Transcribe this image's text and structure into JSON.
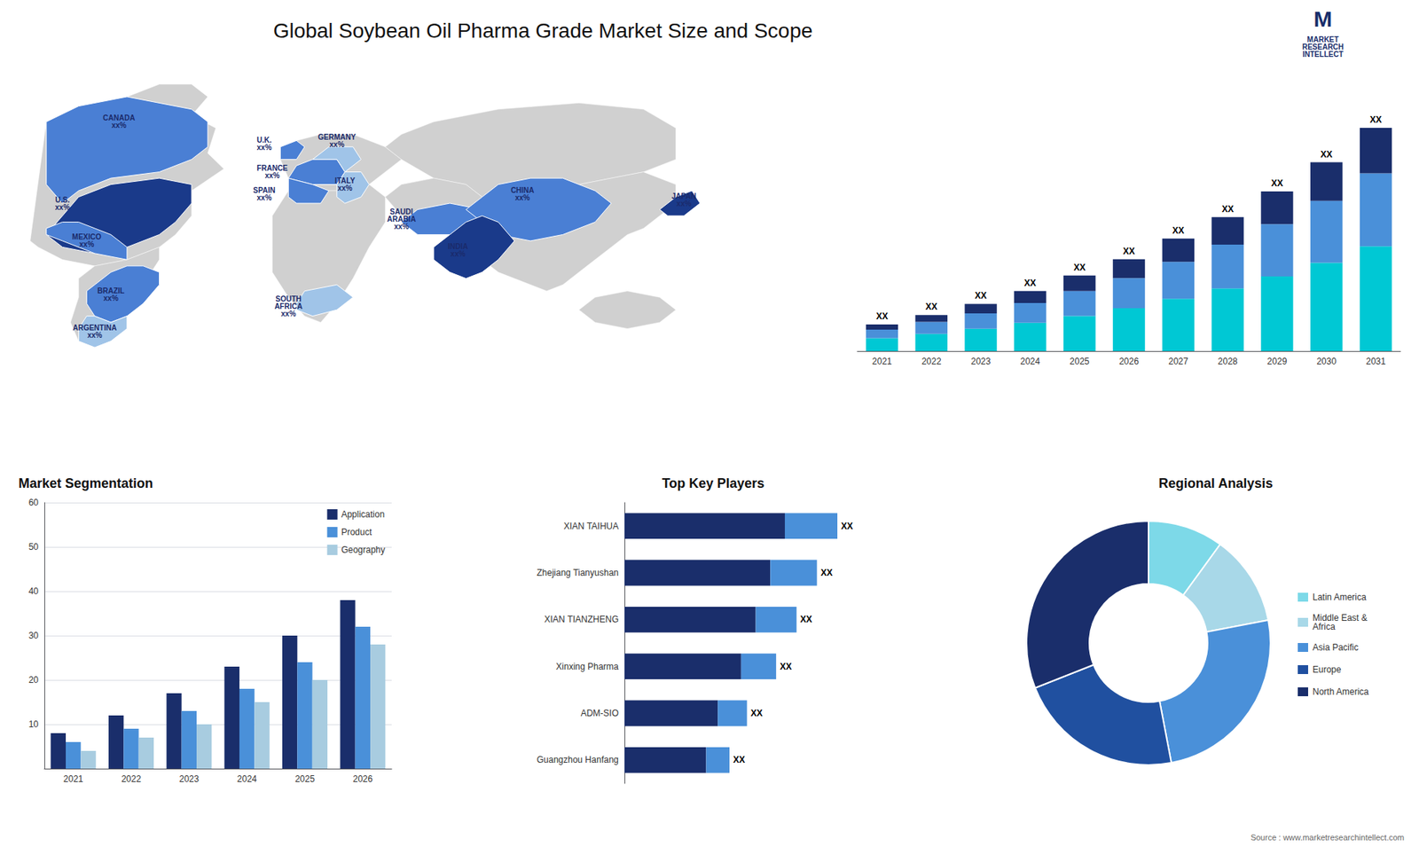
{
  "title": "Global Soybean Oil Pharma Grade Market Size and Scope",
  "annotations": [
    "M",
    "MARKET\nRESEARCH\nINTELLECT",
    "Source : www.marketresearchintellect.com"
  ],
  "chart_data": [
    {
      "type": "map",
      "color": "#d0d0d0",
      "annotations": [
        "CANADA\nxx%",
        "U.S.\nxx%",
        "MEXICO\nxx%",
        "BRAZIL\nxx%",
        "ARGENTINA\nxx%",
        "U.K.\nxx%",
        "FRANCE\nxx%",
        "SPAIN\nxx%",
        "GERMANY\nxx%",
        "ITALY\nxx%",
        "SAUDI\nARABIA\nxx%",
        "SOUTH\nAFRICA\nxx%",
        "CHINA\nxx%",
        "INDIA\nxx%",
        "JAPAN\nxx%"
      ],
      "colors": [
        "#4a7fd4",
        "#1a3a8a",
        "#4a7fd4",
        "#4a7fd4",
        "#a0c4e8",
        "#4a7fd4",
        "#4a7fd4",
        "#4a7fd4",
        "#a0c4e8",
        "#a0c4e8",
        "#4a7fd4",
        "#a0c4e8",
        "#4a7fd4",
        "#1a3a8a",
        "#1a3a8a"
      ]
    },
    {
      "type": "bar",
      "stacked": true,
      "categories": [
        "2021",
        "2022",
        "2023",
        "2024",
        "2025",
        "2026",
        "2027",
        "2028",
        "2029",
        "2030",
        "2031"
      ],
      "series": [
        {
          "color": "#00c8d4",
          "values": [
            1.5,
            2.0,
            2.6,
            3.3,
            4.1,
            5.0,
            6.1,
            7.3,
            8.7,
            10.3,
            12.2
          ]
        },
        {
          "color": "#4a90d9",
          "values": [
            1.0,
            1.4,
            1.8,
            2.3,
            2.9,
            3.5,
            4.3,
            5.1,
            6.1,
            7.2,
            8.5
          ]
        },
        {
          "color": "#1a2e6b",
          "values": [
            0.6,
            0.8,
            1.1,
            1.4,
            1.8,
            2.2,
            2.7,
            3.2,
            3.8,
            4.5,
            5.3
          ],
          "value_labels": [
            "XX",
            "XX",
            "XX",
            "XX",
            "XX",
            "XX",
            "XX",
            "XX",
            "XX",
            "XX",
            "XX"
          ]
        }
      ],
      "ylim": [
        0,
        31
      ],
      "tick_labels": "x",
      "grid": false
    },
    {
      "type": "bar",
      "title": "Market Segmentation",
      "categories": [
        "2021",
        "2022",
        "2023",
        "2024",
        "2025",
        "2026"
      ],
      "series": [
        {
          "name": "Application",
          "color": "#1a2e6b",
          "values": [
            8,
            12,
            17,
            23,
            30,
            38
          ]
        },
        {
          "name": "Product",
          "color": "#4a90d9",
          "values": [
            6,
            9,
            13,
            18,
            24,
            32
          ]
        },
        {
          "name": "Geography",
          "color": "#a8cce0",
          "values": [
            4,
            7,
            10,
            15,
            20,
            28
          ]
        }
      ],
      "ylim": [
        0,
        60
      ],
      "yticks": [
        10,
        20,
        30,
        40,
        50,
        60
      ],
      "grid": true,
      "legend": "upper right"
    },
    {
      "type": "bar",
      "title": "Top Key Players",
      "orientation": "horizontal",
      "stacked": true,
      "categories": [
        "XIAN TAIHUA",
        "Zhejiang Tianyushan",
        "XIAN TIANZHENG",
        "Xinxing Pharma",
        "ADM-SIO",
        "Guangzhou Hanfang"
      ],
      "series": [
        {
          "color": "#1a2e6b",
          "values": [
            5.5,
            5.0,
            4.5,
            4.0,
            3.2,
            2.8
          ]
        },
        {
          "color": "#4a90d9",
          "values": [
            1.8,
            1.6,
            1.4,
            1.2,
            1.0,
            0.8
          ],
          "value_labels": [
            "XX",
            "XX",
            "XX",
            "XX",
            "XX",
            "XX"
          ]
        }
      ],
      "xlim": [
        0,
        9.125
      ],
      "tick_labels": "y",
      "grid": false
    },
    {
      "type": "donut",
      "title": "Regional Analysis",
      "categories": [
        "Latin America",
        "Middle East &\nAfrica",
        "Asia Pacific",
        "Europe",
        "North America"
      ],
      "values": [
        10,
        12,
        25,
        22,
        31
      ],
      "colors": [
        "#7dd9e8",
        "#a8d8e8",
        "#4a90d9",
        "#2050a0",
        "#1a2e6b"
      ],
      "legend": "right"
    }
  ]
}
